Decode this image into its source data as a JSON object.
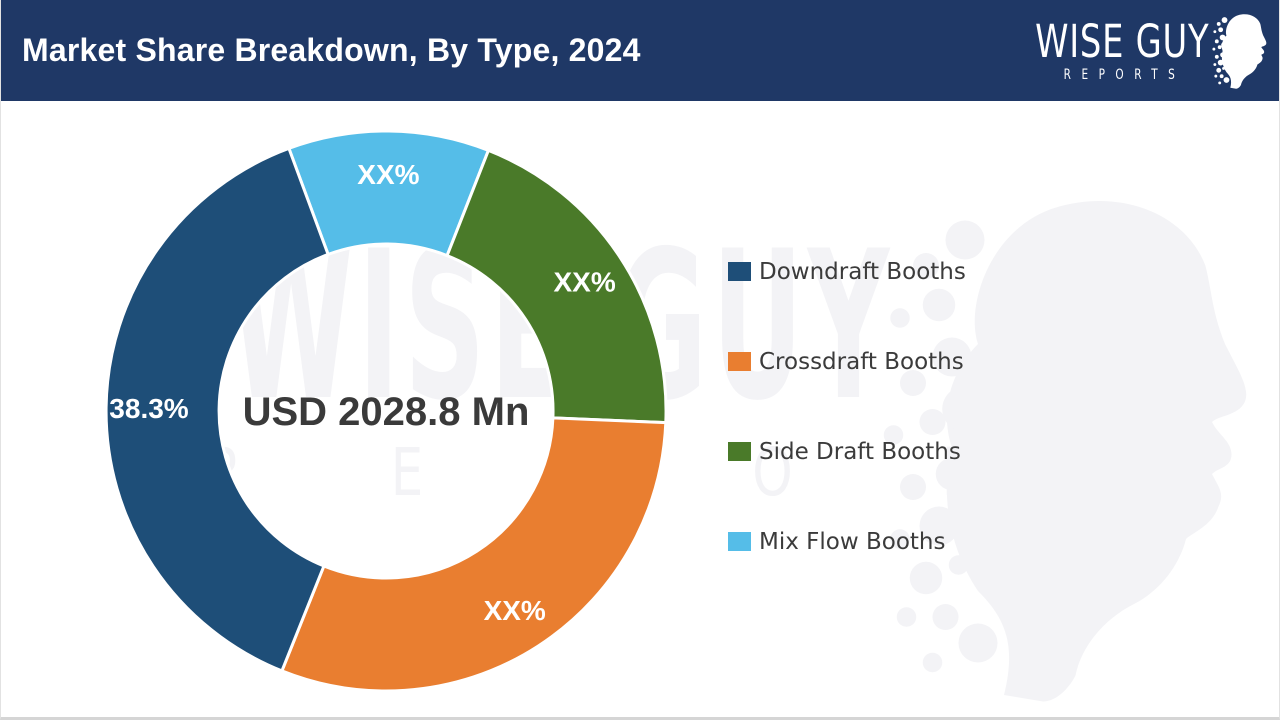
{
  "header": {
    "title": "Market Share Breakdown, By Type, 2024",
    "logo": {
      "name": "WISE GUY",
      "sub": "REPORTS"
    }
  },
  "chart_data": {
    "type": "donut",
    "title": "Market Share Breakdown, By Type, 2024",
    "center_label": "USD 2028.8 Mn",
    "start_angle_deg": -20.3,
    "donut": {
      "outer_radius": 280,
      "inner_radius": 167,
      "label_radius": 237
    },
    "segments": [
      {
        "name": "Mix Flow Booths",
        "label": "XX%",
        "value_pct": 11.6,
        "color": "#55bde8"
      },
      {
        "name": "Side Draft Booths",
        "label": "XX%",
        "value_pct": 19.7,
        "color": "#4a7a29"
      },
      {
        "name": "Crossdraft Booths",
        "label": "XX%",
        "value_pct": 30.4,
        "color": "#e97e30"
      },
      {
        "name": "Downdraft Booths",
        "label": "38.3%",
        "value_pct": 38.3,
        "color": "#1e4e78"
      }
    ],
    "legend_position": "right",
    "legend": [
      {
        "label": "Downdraft Booths",
        "color": "#1e4e78"
      },
      {
        "label": "Crossdraft Booths",
        "color": "#e97e30"
      },
      {
        "label": "Side Draft Booths",
        "color": "#4a7a29"
      },
      {
        "label": "Mix Flow Booths",
        "color": "#55bde8"
      }
    ]
  },
  "watermark": {
    "line1": "WISE GUY",
    "line2": "R E P O R T S"
  }
}
